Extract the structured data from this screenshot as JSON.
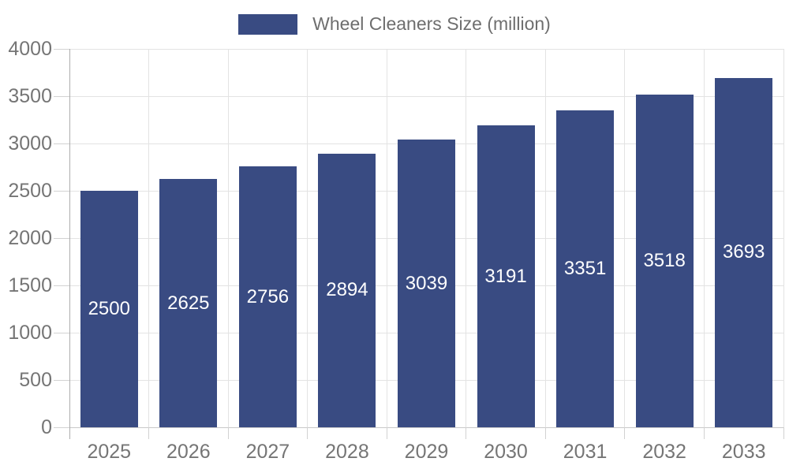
{
  "legend": {
    "label": "Wheel Cleaners Size (million)",
    "swatch_color": "#394B82"
  },
  "chart_data": {
    "type": "bar",
    "title": "Wheel Cleaners Size (million)",
    "categories": [
      "2025",
      "2026",
      "2027",
      "2028",
      "2029",
      "2030",
      "2031",
      "2032",
      "2033"
    ],
    "values": [
      2500,
      2625,
      2756,
      2894,
      3039,
      3191,
      3351,
      3518,
      3693
    ],
    "series": [
      {
        "name": "Wheel Cleaners Size (million)",
        "values": [
          2500,
          2625,
          2756,
          2894,
          3039,
          3191,
          3351,
          3518,
          3693
        ]
      }
    ],
    "xlabel": "",
    "ylabel": "",
    "ylim": [
      0,
      4000
    ],
    "yticks": [
      0,
      500,
      1000,
      1500,
      2000,
      2500,
      3000,
      3500,
      4000
    ],
    "grid": true,
    "legend_position": "top",
    "bar_color": "#394B82",
    "value_label_color": "#ffffff",
    "axis_text_color": "#757575",
    "value_labels_inside_bars": true
  }
}
